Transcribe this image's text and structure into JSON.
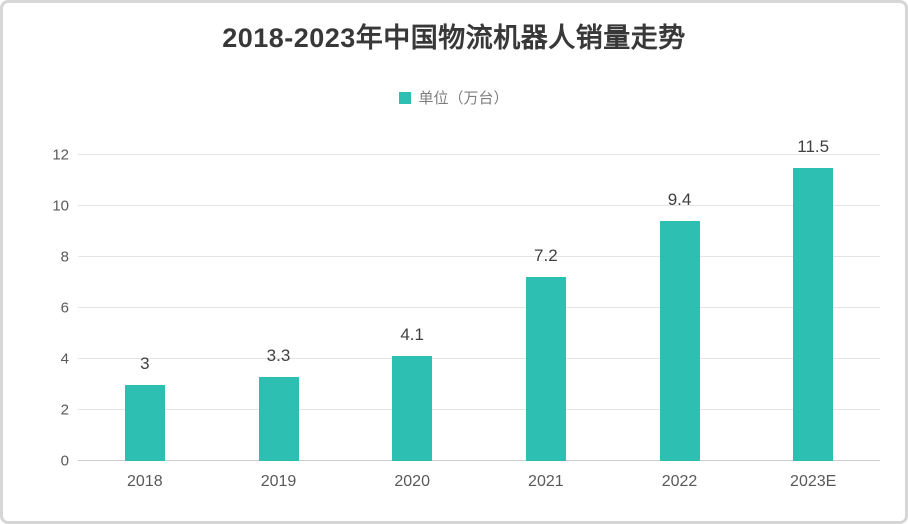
{
  "chart_data": {
    "type": "bar",
    "title": "2018-2023年中国物流机器人销量走势",
    "legend": [
      "单位（万台）"
    ],
    "legend_position": "top-center",
    "categories": [
      "2018",
      "2019",
      "2020",
      "2021",
      "2022",
      "2023E"
    ],
    "values": [
      3,
      3.3,
      4.1,
      7.2,
      9.4,
      11.5
    ],
    "value_labels": [
      "3",
      "3.3",
      "4.1",
      "7.2",
      "9.4",
      "11.5"
    ],
    "xlabel": "",
    "ylabel": "",
    "ylim": [
      0,
      12
    ],
    "yticks": [
      0,
      2,
      4,
      6,
      8,
      10,
      12
    ],
    "grid": true,
    "bar_color": "#2ebfb3",
    "colors": {
      "bar": "#2ebfb3",
      "title_text": "#383838",
      "value_label_text": "#404040",
      "axis_tick_text": "#595959",
      "legend_text": "#7f7f7f",
      "gridline": "#e4e4e4",
      "baseline": "#cccccc",
      "card_border": "#d6d6d6",
      "background": "#ffffff"
    }
  }
}
